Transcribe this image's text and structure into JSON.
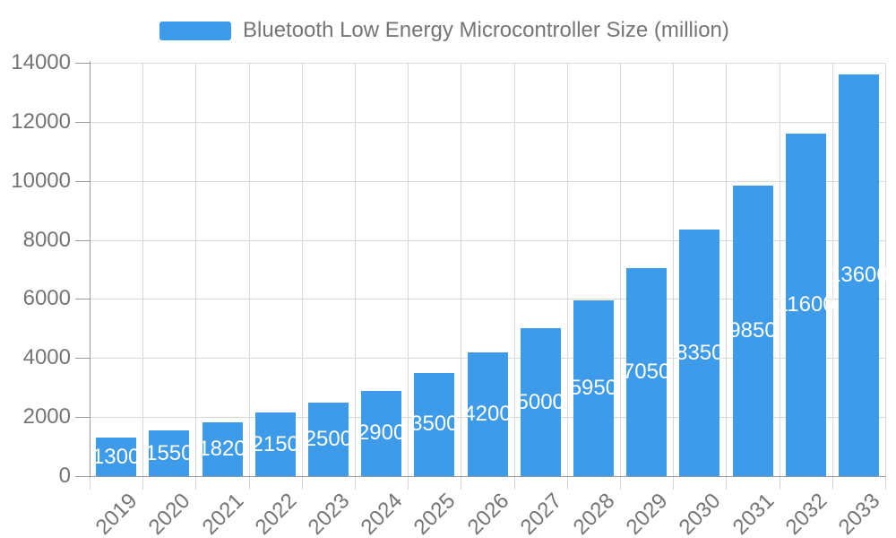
{
  "legend": {
    "label": "Bluetooth Low Energy Microcontroller Size (million)"
  },
  "chart_data": {
    "type": "bar",
    "title": "Bluetooth Low Energy Microcontroller Size (million)",
    "categories": [
      "2019",
      "2020",
      "2021",
      "2022",
      "2023",
      "2024",
      "2025",
      "2026",
      "2027",
      "2028",
      "2029",
      "2030",
      "2031",
      "2032",
      "2033"
    ],
    "values": [
      1300,
      1550,
      1820,
      2150,
      2500,
      2900,
      3500,
      4200,
      5000,
      5950,
      7050,
      8350,
      9850,
      11600,
      13600
    ],
    "xlabel": "",
    "ylabel": "",
    "ylim": [
      0,
      14000
    ],
    "yticks": [
      0,
      2000,
      4000,
      6000,
      8000,
      10000,
      12000,
      14000
    ],
    "grid": "both",
    "legend_position": "top",
    "bar_label_position": "inside-center",
    "x_label_rotation_deg": 45,
    "colors": {
      "bar": "#3D9BE9",
      "bar_label": "#ffffff",
      "axis_line": "#999999",
      "grid_line": "#d9d9d9",
      "x_tick": "#d4d4d4",
      "text": "#757575",
      "background": "#ffffff"
    }
  }
}
